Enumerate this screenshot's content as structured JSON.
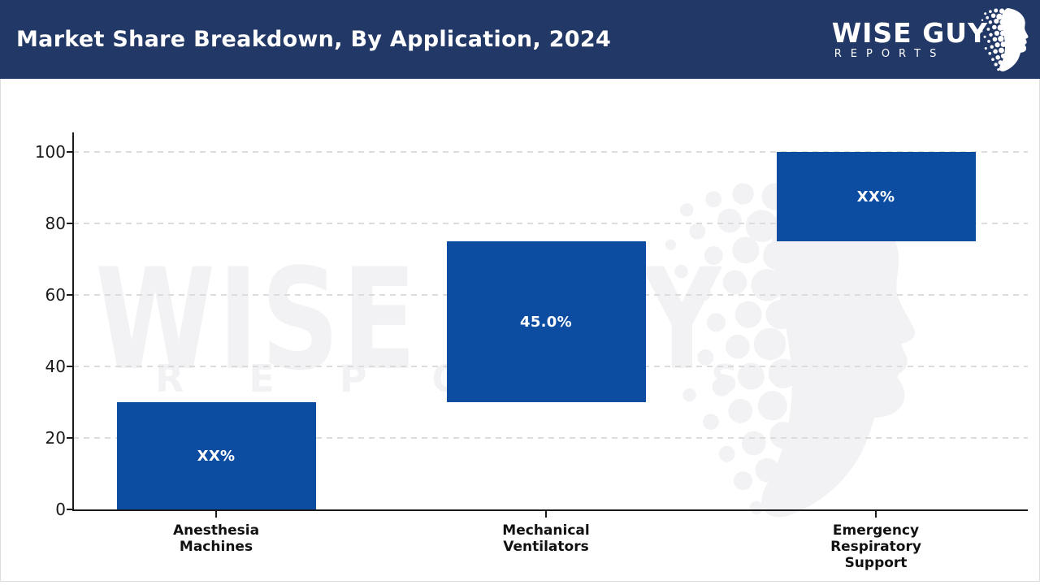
{
  "header": {
    "title": "Market Share Breakdown, By Application, 2024",
    "logo": {
      "line1": "WISE GUY",
      "line2": "REPORTS"
    }
  },
  "watermark": {
    "line1": "WISE GUY",
    "line2": "REPORTS"
  },
  "chart_data": {
    "type": "bar",
    "subtype": "floating-segment stacked breakdown (waterfall-style)",
    "title": "Market Share Breakdown, By Application, 2024",
    "categories": [
      "Anesthesia Machines",
      "Mechanical Ventilators",
      "Emergency Respiratory Support"
    ],
    "category_lines": [
      [
        "Anesthesia",
        "Machines"
      ],
      [
        "Mechanical",
        "Ventilators"
      ],
      [
        "Emergency",
        "Respiratory",
        "Support"
      ]
    ],
    "segments": [
      {
        "category": "Anesthesia Machines",
        "start": 0,
        "end": 30,
        "label": "XX%"
      },
      {
        "category": "Mechanical Ventilators",
        "start": 30,
        "end": 75,
        "label": "45.0%"
      },
      {
        "category": "Emergency Respiratory Support",
        "start": 75,
        "end": 100,
        "label": "XX%"
      }
    ],
    "xlabel": "",
    "ylabel": "",
    "ylim": [
      0,
      100
    ],
    "yticks": [
      0,
      20,
      40,
      60,
      80,
      100
    ],
    "grid": "horizontal dashed",
    "legend": "none",
    "colors": {
      "bar": "#0C4DA2",
      "header_bg": "#223866",
      "grid": "#DCDCDC",
      "axis": "#1A1A1A",
      "bar_label": "#FFFFFF",
      "watermark": "#F2F2F4"
    }
  }
}
